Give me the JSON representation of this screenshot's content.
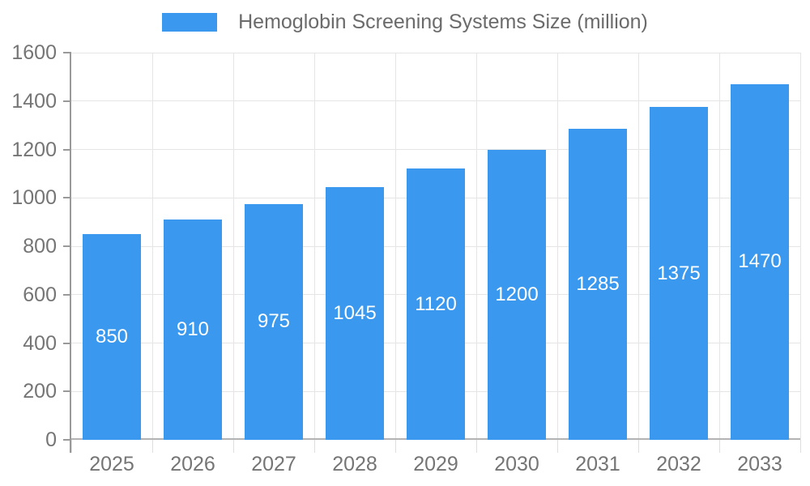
{
  "chart_data": {
    "type": "bar",
    "title": "Hemoglobin Screening Systems Size (million)",
    "categories": [
      "2025",
      "2026",
      "2027",
      "2028",
      "2029",
      "2030",
      "2031",
      "2032",
      "2033"
    ],
    "values": [
      850,
      910,
      975,
      1045,
      1120,
      1200,
      1285,
      1375,
      1470
    ],
    "xlabel": "",
    "ylabel": "",
    "ylim": [
      0,
      1600
    ],
    "yticks": [
      0,
      200,
      400,
      600,
      800,
      1000,
      1200,
      1400,
      1600
    ],
    "grid": "both",
    "legend_position": "top",
    "value_labels": "inside-center"
  },
  "colors": {
    "bar": "#3a99ee",
    "value_label": "#ffffff",
    "grid": "#e5e5e5",
    "axis_x": "#b3b3b3",
    "axis_y": "#999999",
    "x_tick": "#dedede",
    "tick_label": "#757575",
    "legend_text": "#6b6b6b",
    "background": "#ffffff"
  }
}
